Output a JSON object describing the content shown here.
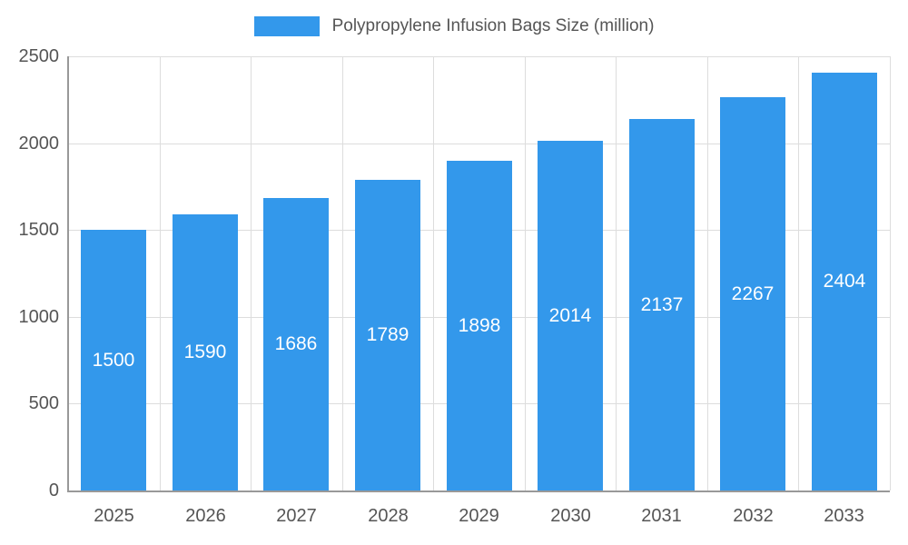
{
  "chart_data": {
    "type": "bar",
    "title": "Polypropylene Infusion Bags Size (million)",
    "legend_entries": [
      "Polypropylene Infusion Bags Size (million)"
    ],
    "legend_position": "top",
    "categories": [
      "2025",
      "2026",
      "2027",
      "2028",
      "2029",
      "2030",
      "2031",
      "2032",
      "2033"
    ],
    "values": [
      1500,
      1590,
      1686,
      1789,
      1898,
      2014,
      2137,
      2267,
      2404
    ],
    "xlabel": "",
    "ylabel": "",
    "ylim": [
      0,
      2500
    ],
    "yticks": [
      0,
      500,
      1000,
      1500,
      2000,
      2500
    ],
    "grid": true,
    "bar_color": "#3398eb",
    "value_label_color": "#ffffff",
    "axis_text_color": "#555555",
    "grid_color": "#dddddd",
    "axis_line_color": "#999999"
  }
}
